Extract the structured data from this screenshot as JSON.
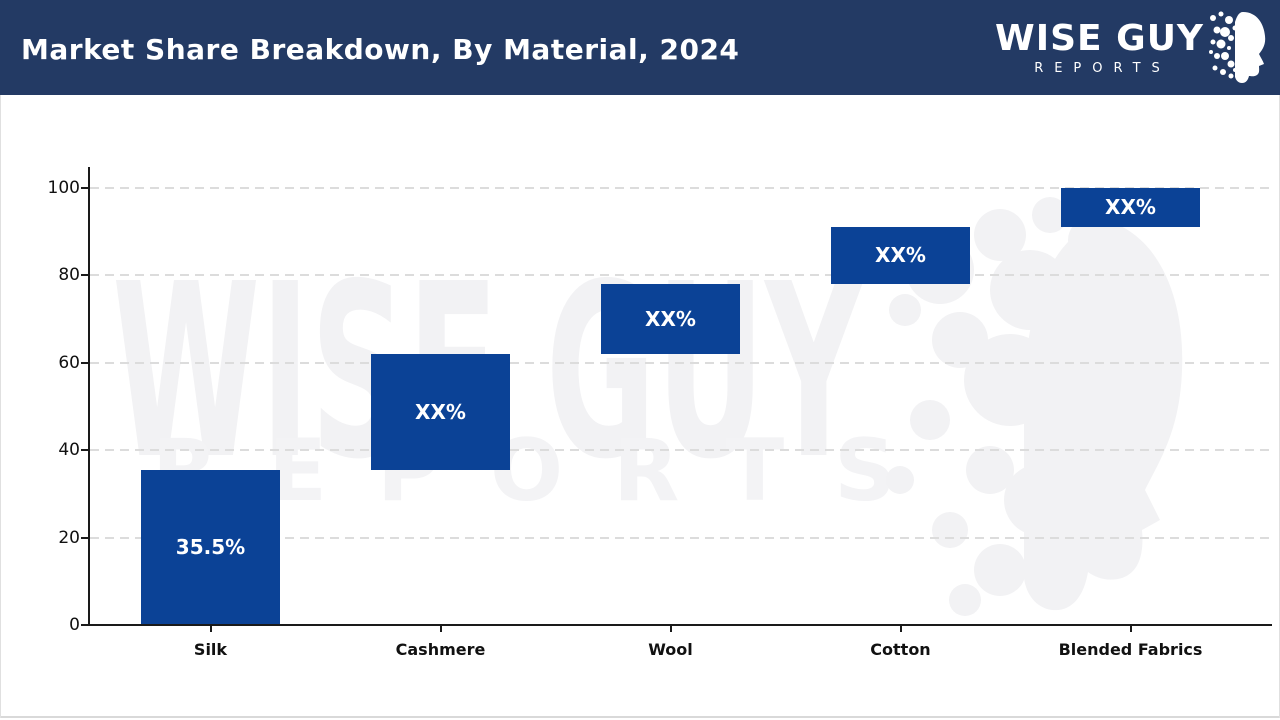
{
  "header": {
    "title": "Market Share Breakdown, By Material, 2024",
    "logo": {
      "name": "WISE GUY",
      "sub": "REPORTS",
      "head_icon": "dotted-face-profile"
    }
  },
  "watermark": {
    "line1": "WISE GUY",
    "line2": "REPORTS"
  },
  "chart_data": {
    "type": "bar",
    "subtype": "waterfall",
    "title": "Market Share Breakdown, By Material, 2024",
    "categories": [
      "Silk",
      "Cashmere",
      "Wool",
      "Cotton",
      "Blended Fabrics"
    ],
    "series": [
      {
        "name": "Market Share (%)",
        "values": [
          35.5,
          26.5,
          16,
          13,
          9
        ]
      }
    ],
    "cumulative_segments": [
      [
        0,
        35.5
      ],
      [
        35.5,
        62
      ],
      [
        62,
        78
      ],
      [
        78,
        91
      ],
      [
        91,
        100
      ]
    ],
    "bar_labels": [
      "35.5%",
      "XX%",
      "XX%",
      "XX%",
      "XX%"
    ],
    "xlabel": "",
    "ylabel": "",
    "ylim": [
      0,
      100
    ],
    "yticks": [
      0,
      20,
      40,
      60,
      80,
      100
    ],
    "grid": "horizontal-dashed",
    "legend": "none",
    "bar_color": "#0b4296",
    "bar_label_color": "#ffffff",
    "axis_color": "#1a1a1a",
    "grid_color": "#dcdcdc",
    "header_bg": "#233a64",
    "watermark_color": "#f2f2f4"
  }
}
